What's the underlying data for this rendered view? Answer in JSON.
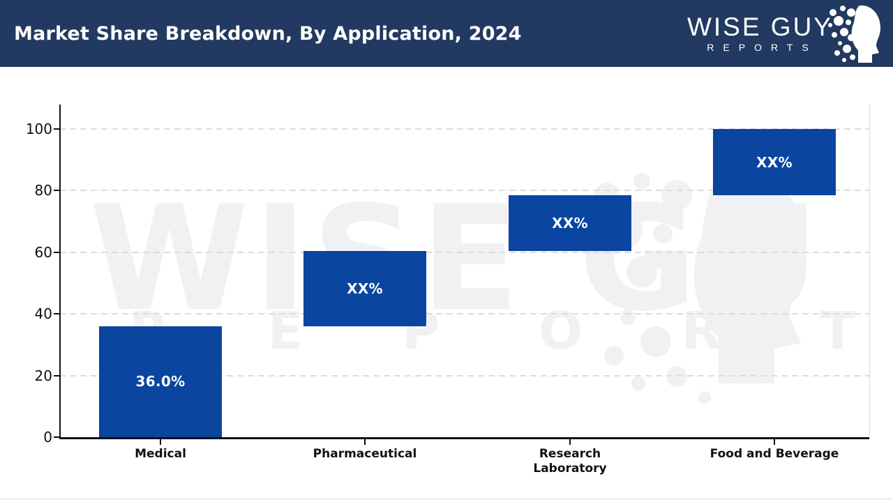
{
  "header": {
    "title": "Market Share Breakdown, By Application, 2024",
    "bg_color": "#223A61",
    "logo": {
      "line1": "WISE GUY",
      "line2": "REPORTS"
    }
  },
  "watermark": {
    "line1": "WISE GU",
    "line2": "R E P O R T S"
  },
  "chart_data": {
    "type": "bar",
    "subtype": "waterfall",
    "title": "Market Share Breakdown, By Application, 2024",
    "xlabel": "",
    "ylabel": "",
    "categories": [
      "Medical",
      "Pharmaceutical",
      "Research Laboratory",
      "Food and Beverage"
    ],
    "category_lines": [
      [
        "Medical"
      ],
      [
        "Pharmaceutical"
      ],
      [
        "Research",
        "Laboratory"
      ],
      [
        "Food and Beverage"
      ]
    ],
    "segments": [
      {
        "category": "Medical",
        "start": 0,
        "end": 36,
        "label": "36.0%"
      },
      {
        "category": "Pharmaceutical",
        "start": 36,
        "end": 60.5,
        "label": "XX%"
      },
      {
        "category": "Research Laboratory",
        "start": 60.5,
        "end": 78.5,
        "label": "XX%"
      },
      {
        "category": "Food and Beverage",
        "start": 78.5,
        "end": 100,
        "label": "XX%"
      }
    ],
    "yticks": [
      0,
      20,
      40,
      60,
      80,
      100
    ],
    "ylim": [
      0,
      108
    ],
    "grid": "horizontal-dashed",
    "legend": "none",
    "bar_color": "#0A45A0",
    "bar_label_color": "#ffffff"
  }
}
